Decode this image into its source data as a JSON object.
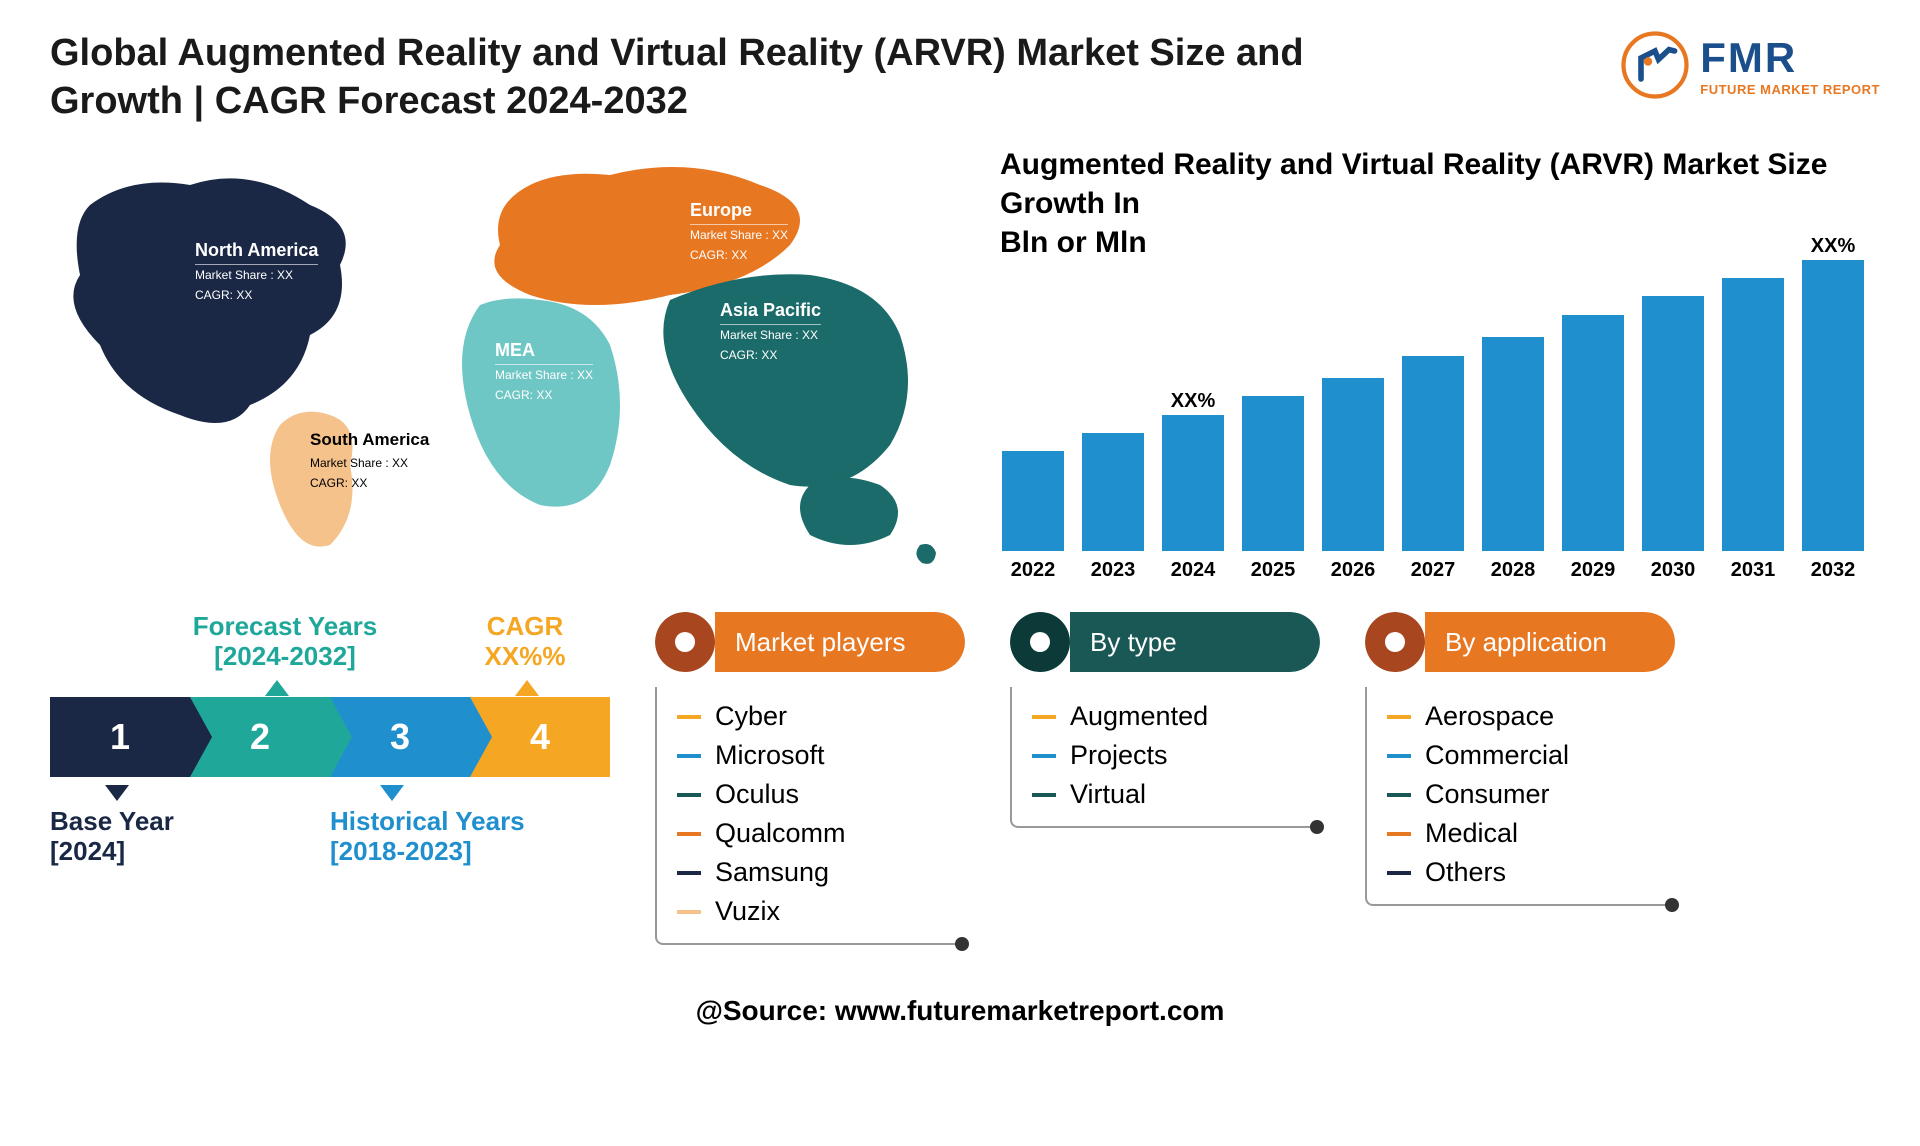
{
  "title": "Global Augmented Reality and Virtual Reality (ARVR) Market Size and Growth | CAGR Forecast 2024-2032",
  "logo": {
    "main": "FMR",
    "sub": "FUTURE MARKET REPORT"
  },
  "map": {
    "regions": [
      {
        "key": "na",
        "name": "North America",
        "share": "Market Share : XX",
        "cagr": "CAGR: XX",
        "color": "#1a2845"
      },
      {
        "key": "sa",
        "name": "South America",
        "share": "Market Share : XX",
        "cagr": "CAGR: XX",
        "color": "#f6c28b"
      },
      {
        "key": "eu",
        "name": "Europe",
        "share": "Market Share : XX",
        "cagr": "CAGR: XX",
        "color": "#e87722"
      },
      {
        "key": "mea",
        "name": "MEA",
        "share": "Market Share : XX",
        "cagr": "CAGR: XX",
        "color": "#6fc7c5"
      },
      {
        "key": "ap",
        "name": "Asia Pacific",
        "share": "Market Share : XX",
        "cagr": "CAGR: XX",
        "color": "#1a6b69"
      }
    ]
  },
  "chart": {
    "type": "bar",
    "title": "Augmented Reality and Virtual Reality (ARVR) Market Size Growth In\nBln or Mln",
    "categories": [
      "2022",
      "2023",
      "2024",
      "2025",
      "2026",
      "2027",
      "2028",
      "2029",
      "2030",
      "2031",
      "2032"
    ],
    "values": [
      110,
      130,
      150,
      170,
      190,
      215,
      235,
      260,
      280,
      300,
      320
    ],
    "value_labels": [
      "",
      "",
      "XX%",
      "",
      "",
      "",
      "",
      "",
      "",
      "",
      "XX%"
    ],
    "bar_color": "#1f8fce",
    "label_fontsize": 20,
    "ylim": [
      0,
      330
    ]
  },
  "timeline": {
    "forecast": {
      "label": "Forecast Years",
      "range": "[2024-2032]",
      "color": "#1fa89a"
    },
    "cagr": {
      "label": "CAGR",
      "value": "XX%%",
      "color": "#f5a623"
    },
    "base": {
      "label": "Base Year",
      "range": "[2024]",
      "color": "#1a2845"
    },
    "historical": {
      "label": "Historical Years",
      "range": "[2018-2023]",
      "color": "#1f8fce"
    },
    "steps": [
      {
        "n": "1",
        "color": "#1a2845"
      },
      {
        "n": "2",
        "color": "#1fa89a"
      },
      {
        "n": "3",
        "color": "#1f8fce"
      },
      {
        "n": "4",
        "color": "#f5a623"
      }
    ]
  },
  "cols": [
    {
      "title": "Market players",
      "style": "orange",
      "items": [
        {
          "t": "Cyber",
          "c": "#f5a623"
        },
        {
          "t": "Microsoft",
          "c": "#1f8fce"
        },
        {
          "t": "Oculus",
          "c": "#1a5856"
        },
        {
          "t": "Qualcomm",
          "c": "#e87722"
        },
        {
          "t": "Samsung",
          "c": "#1a2845"
        },
        {
          "t": "Vuzix",
          "c": "#f6c28b"
        }
      ]
    },
    {
      "title": "By type",
      "style": "teal",
      "items": [
        {
          "t": "Augmented",
          "c": "#f5a623"
        },
        {
          "t": "Projects",
          "c": "#1f8fce"
        },
        {
          "t": "Virtual",
          "c": "#1a5856"
        }
      ]
    },
    {
      "title": "By application",
      "style": "orange",
      "items": [
        {
          "t": "Aerospace",
          "c": "#f5a623"
        },
        {
          "t": "Commercial",
          "c": "#1f8fce"
        },
        {
          "t": "Consumer",
          "c": "#1a5856"
        },
        {
          "t": "Medical",
          "c": "#e87722"
        },
        {
          "t": "Others",
          "c": "#1a2845"
        }
      ]
    }
  ],
  "source": "@Source: www.futuremarketreport.com"
}
